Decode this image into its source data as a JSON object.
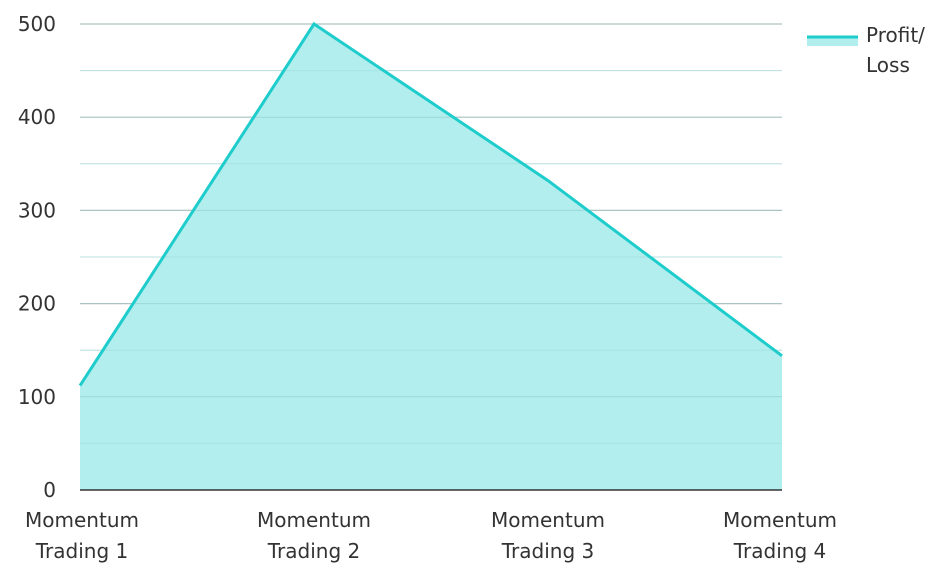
{
  "chart_data": {
    "type": "area",
    "categories": [
      "Momentum Trading 1",
      "Momentum Trading 2",
      "Momentum Trading 3",
      "Momentum Trading 4"
    ],
    "series": [
      {
        "name": "Profit/ Loss",
        "values": [
          112,
          500,
          332,
          144
        ],
        "color": "#1fcccc",
        "fill": "#b2eeee"
      }
    ],
    "title": "",
    "xlabel": "",
    "ylabel": "",
    "ylim": [
      0,
      500
    ],
    "yticks": [
      0,
      100,
      200,
      300,
      400,
      500
    ],
    "grid": true,
    "legend_position": "top-right"
  }
}
